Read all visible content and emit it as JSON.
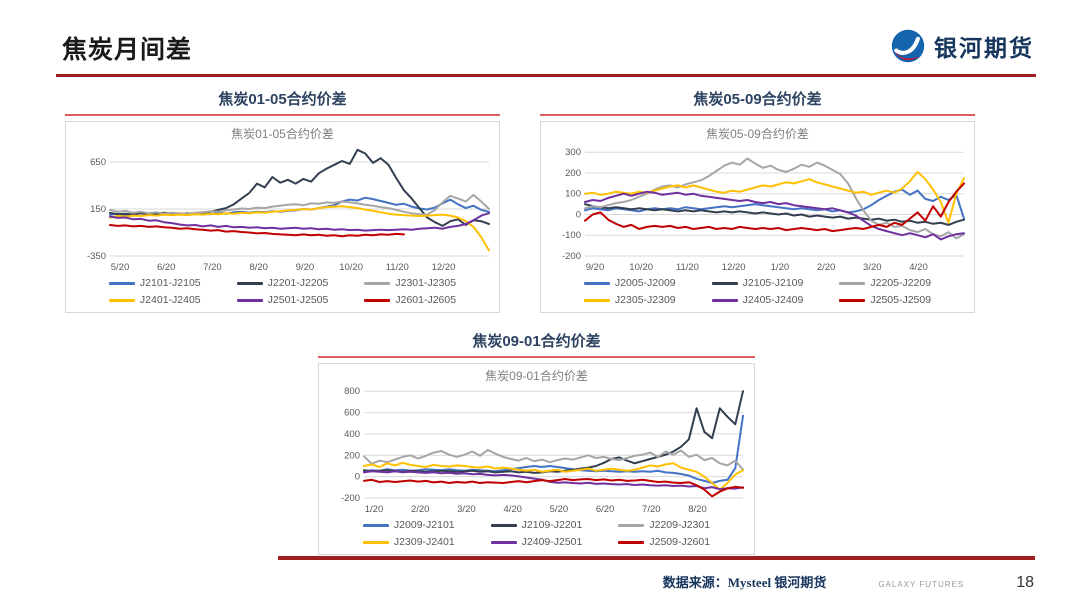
{
  "page": {
    "title": "焦炭月间差",
    "logo_text": "银河期货",
    "footer_source": "数据来源：Mysteel 银河期货",
    "footer_brand": "GALAXY FUTURES",
    "page_number": "18"
  },
  "colors": {
    "accent_dark_red": "#9e1f1f",
    "chart_header_rule": "#dd5c5c",
    "chart_header_text": "#2e4361",
    "brand_blue": "#1465ae",
    "brand_red": "#c8102e",
    "series_blue": "#4472C4",
    "series_navy": "#333F50",
    "series_gray": "#A6A6A6",
    "series_yellow": "#FFC000",
    "series_purple": "#7030A0",
    "series_red": "#C00000"
  },
  "chart_data": [
    {
      "type": "line",
      "header": "焦炭01-05合约价差",
      "title": "焦炭01-05合约价差",
      "x_ticks": [
        "5/20",
        "6/20",
        "7/20",
        "8/20",
        "9/20",
        "10/20",
        "11/20",
        "12/20"
      ],
      "y_ticks": [
        650,
        150,
        -350
      ],
      "ylim": [
        -350,
        820
      ],
      "grid": true,
      "legend_position": "bottom",
      "series": [
        {
          "name": "J2101-J2105",
          "color": "#4472C4",
          "values": [
            90,
            100,
            85,
            95,
            105,
            90,
            100,
            95,
            105,
            100,
            95,
            100,
            105,
            95,
            110,
            100,
            115,
            120,
            110,
            120,
            115,
            125,
            120,
            130,
            135,
            150,
            145,
            160,
            175,
            190,
            230,
            250,
            240,
            270,
            255,
            235,
            215,
            195,
            205,
            175,
            155,
            145,
            165,
            210,
            250,
            200,
            160,
            185,
            140,
            120
          ]
        },
        {
          "name": "J2201-J2205",
          "color": "#333F50",
          "values": [
            110,
            95,
            100,
            90,
            105,
            95,
            100,
            110,
            100,
            95,
            105,
            100,
            110,
            120,
            140,
            160,
            200,
            260,
            320,
            420,
            380,
            490,
            430,
            460,
            420,
            470,
            440,
            530,
            580,
            620,
            660,
            630,
            780,
            740,
            640,
            690,
            620,
            480,
            350,
            260,
            160,
            60,
            10,
            -30,
            20,
            40,
            -20,
            30,
            20,
            -10
          ]
        },
        {
          "name": "J2301-J2305",
          "color": "#A6A6A6",
          "values": [
            140,
            120,
            130,
            110,
            120,
            105,
            115,
            100,
            110,
            105,
            100,
            110,
            115,
            125,
            120,
            135,
            145,
            155,
            150,
            165,
            160,
            175,
            185,
            195,
            200,
            190,
            210,
            205,
            220,
            215,
            230,
            220,
            210,
            195,
            185,
            170,
            160,
            140,
            120,
            105,
            95,
            90,
            140,
            220,
            290,
            260,
            230,
            300,
            230,
            150
          ]
        },
        {
          "name": "J2401-J2405",
          "color": "#FFC000",
          "values": [
            60,
            75,
            70,
            80,
            75,
            85,
            80,
            90,
            85,
            90,
            85,
            95,
            90,
            100,
            95,
            105,
            100,
            110,
            105,
            115,
            110,
            120,
            125,
            135,
            140,
            150,
            145,
            160,
            170,
            175,
            180,
            170,
            160,
            145,
            130,
            115,
            100,
            90,
            85,
            80,
            75,
            80,
            85,
            90,
            80,
            60,
            20,
            -40,
            -150,
            -290
          ]
        },
        {
          "name": "J2501-J2505",
          "color": "#7030A0",
          "values": [
            70,
            55,
            60,
            40,
            45,
            25,
            30,
            10,
            0,
            -15,
            -25,
            -20,
            -35,
            -25,
            -40,
            -30,
            -45,
            -40,
            -50,
            -45,
            -55,
            -50,
            -60,
            -55,
            -50,
            -60,
            -55,
            -65,
            -60,
            -70,
            -65,
            -75,
            -70,
            -80,
            -75,
            -70,
            -75,
            -70,
            -65,
            -70,
            -60,
            -55,
            -50,
            -60,
            -40,
            -30,
            -10,
            30,
            80,
            105
          ]
        },
        {
          "name": "J2601-J2605",
          "color": "#C00000",
          "values": [
            -20,
            -30,
            -25,
            -35,
            -30,
            -40,
            -35,
            -45,
            -50,
            -60,
            -55,
            -65,
            -70,
            -80,
            -75,
            -90,
            -85,
            -95,
            -100,
            -110,
            -105,
            -115,
            -120,
            -125,
            -130,
            -120,
            -130,
            -125,
            -135,
            -130,
            -140,
            -130,
            -135,
            -125,
            -130,
            -120,
            -125,
            -115,
            -120,
            null,
            null,
            null,
            null,
            null,
            null,
            null,
            null,
            null,
            null,
            null
          ]
        }
      ]
    },
    {
      "type": "line",
      "header": "焦炭05-09合约价差",
      "title": "焦炭05-09合约价差",
      "x_ticks": [
        "9/20",
        "10/20",
        "11/20",
        "12/20",
        "1/20",
        "2/20",
        "3/20",
        "4/20"
      ],
      "y_ticks": [
        300,
        200,
        100,
        0,
        -100,
        -200
      ],
      "ylim": [
        -200,
        330
      ],
      "grid": true,
      "legend_position": "bottom",
      "series": [
        {
          "name": "J2005-J2009",
          "color": "#4472C4",
          "values": [
            20,
            30,
            25,
            20,
            30,
            25,
            20,
            15,
            25,
            30,
            25,
            30,
            25,
            35,
            30,
            25,
            30,
            35,
            40,
            35,
            40,
            45,
            50,
            45,
            40,
            35,
            30,
            25,
            30,
            25,
            20,
            25,
            15,
            20,
            10,
            15,
            25,
            45,
            70,
            90,
            110,
            120,
            95,
            115,
            75,
            65,
            85,
            70,
            95,
            -20
          ]
        },
        {
          "name": "J2105-J2109",
          "color": "#333F50",
          "values": [
            50,
            40,
            35,
            30,
            35,
            30,
            25,
            30,
            25,
            20,
            25,
            20,
            15,
            20,
            15,
            20,
            15,
            10,
            15,
            10,
            15,
            10,
            5,
            10,
            5,
            0,
            5,
            -5,
            0,
            -10,
            -5,
            -10,
            -15,
            -10,
            -20,
            -15,
            -20,
            -25,
            -20,
            -30,
            -25,
            -35,
            -30,
            -40,
            -35,
            -45,
            -40,
            -50,
            -35,
            -25
          ]
        },
        {
          "name": "J2205-J2209",
          "color": "#A6A6A6",
          "values": [
            30,
            40,
            35,
            45,
            55,
            60,
            70,
            85,
            100,
            120,
            135,
            140,
            130,
            145,
            155,
            165,
            185,
            210,
            235,
            250,
            240,
            270,
            245,
            225,
            235,
            215,
            205,
            220,
            240,
            230,
            250,
            235,
            215,
            195,
            150,
            80,
            20,
            -30,
            -50,
            -40,
            -60,
            -55,
            -75,
            -85,
            -70,
            -95,
            -105,
            -85,
            -115,
            -95
          ]
        },
        {
          "name": "J2305-J2309",
          "color": "#FFC000",
          "values": [
            100,
            105,
            95,
            100,
            110,
            105,
            100,
            110,
            105,
            115,
            125,
            135,
            140,
            130,
            140,
            130,
            120,
            110,
            105,
            115,
            110,
            120,
            130,
            140,
            135,
            145,
            155,
            150,
            160,
            170,
            155,
            145,
            135,
            125,
            115,
            105,
            110,
            95,
            105,
            115,
            105,
            125,
            160,
            205,
            170,
            120,
            60,
            -40,
            100,
            175
          ]
        },
        {
          "name": "J2405-J2409",
          "color": "#7030A0",
          "values": [
            60,
            70,
            65,
            80,
            90,
            100,
            90,
            100,
            110,
            105,
            95,
            100,
            105,
            95,
            100,
            90,
            85,
            80,
            75,
            70,
            65,
            70,
            60,
            55,
            60,
            50,
            55,
            45,
            40,
            35,
            30,
            25,
            30,
            20,
            10,
            -5,
            -30,
            -55,
            -70,
            -80,
            -90,
            -100,
            -90,
            -100,
            -110,
            -95,
            -120,
            -105,
            -95,
            -90
          ]
        },
        {
          "name": "J2505-J2509",
          "color": "#C00000",
          "values": [
            -30,
            0,
            10,
            -25,
            -45,
            -60,
            -50,
            -70,
            -60,
            -55,
            -60,
            -55,
            -65,
            -60,
            -70,
            -65,
            -60,
            -70,
            -65,
            -70,
            -60,
            -65,
            -70,
            -65,
            -70,
            -65,
            -75,
            -70,
            -65,
            -70,
            -75,
            -70,
            -80,
            -75,
            -70,
            -65,
            -70,
            -60,
            -50,
            -60,
            -40,
            -50,
            -20,
            10,
            -30,
            40,
            -10,
            60,
            110,
            150
          ]
        }
      ]
    },
    {
      "type": "line",
      "header": "焦炭09-01合约价差",
      "title": "焦炭09-01合约价差",
      "x_ticks": [
        "1/20",
        "2/20",
        "3/20",
        "4/20",
        "5/20",
        "6/20",
        "7/20",
        "8/20"
      ],
      "y_ticks": [
        800,
        600,
        400,
        200,
        0,
        -200
      ],
      "ylim": [
        -200,
        830
      ],
      "grid": true,
      "legend_position": "bottom",
      "series": [
        {
          "name": "J2009-J2101",
          "color": "#4472C4",
          "values": [
            50,
            60,
            55,
            70,
            60,
            65,
            55,
            60,
            70,
            65,
            60,
            70,
            60,
            55,
            65,
            60,
            55,
            50,
            60,
            70,
            80,
            90,
            100,
            90,
            100,
            90,
            80,
            70,
            60,
            55,
            50,
            55,
            50,
            45,
            50,
            45,
            50,
            45,
            55,
            40,
            35,
            25,
            10,
            -20,
            -40,
            -60,
            -40,
            -30,
            80,
            570
          ]
        },
        {
          "name": "J2109-J2201",
          "color": "#333F50",
          "values": [
            60,
            50,
            55,
            60,
            50,
            45,
            55,
            50,
            45,
            50,
            55,
            50,
            45,
            50,
            55,
            45,
            50,
            40,
            45,
            50,
            40,
            45,
            35,
            40,
            50,
            45,
            55,
            65,
            75,
            85,
            100,
            130,
            165,
            180,
            150,
            125,
            145,
            165,
            185,
            205,
            235,
            280,
            350,
            640,
            420,
            360,
            640,
            560,
            490,
            800
          ]
        },
        {
          "name": "J2209-J2301",
          "color": "#A6A6A6",
          "values": [
            190,
            120,
            150,
            135,
            160,
            185,
            200,
            170,
            195,
            225,
            240,
            205,
            185,
            205,
            235,
            195,
            250,
            215,
            185,
            165,
            150,
            175,
            145,
            160,
            135,
            155,
            170,
            160,
            180,
            200,
            175,
            185,
            165,
            155,
            175,
            195,
            205,
            225,
            185,
            235,
            205,
            245,
            185,
            205,
            155,
            175,
            125,
            105,
            150,
            65
          ]
        },
        {
          "name": "J2309-J2401",
          "color": "#FFC000",
          "values": [
            100,
            115,
            90,
            125,
            105,
            130,
            110,
            100,
            90,
            110,
            100,
            95,
            105,
            100,
            90,
            85,
            95,
            75,
            85,
            75,
            65,
            55,
            65,
            45,
            55,
            65,
            45,
            55,
            65,
            75,
            55,
            65,
            75,
            65,
            55,
            65,
            85,
            105,
            95,
            115,
            125,
            85,
            65,
            45,
            0,
            -60,
            -120,
            -60,
            20,
            60
          ]
        },
        {
          "name": "J2409-J2501",
          "color": "#7030A0",
          "values": [
            40,
            50,
            45,
            40,
            50,
            42,
            45,
            40,
            35,
            42,
            32,
            36,
            28,
            32,
            22,
            26,
            16,
            12,
            16,
            12,
            2,
            -8,
            -18,
            -28,
            -48,
            -58,
            -54,
            -60,
            -64,
            -58,
            -68,
            -64,
            -70,
            -74,
            -70,
            -78,
            -74,
            -80,
            -84,
            -80,
            -88,
            -84,
            -92,
            -88,
            -108,
            -98,
            -118,
            -108,
            -112,
            -100
          ]
        },
        {
          "name": "J2509-J2601",
          "color": "#C00000",
          "values": [
            -40,
            -30,
            -50,
            -42,
            -50,
            -44,
            -36,
            -46,
            -40,
            -54,
            -46,
            -60,
            -50,
            -56,
            -46,
            -60,
            -52,
            -56,
            -60,
            -50,
            -42,
            -52,
            -42,
            -32,
            -42,
            -32,
            -22,
            -32,
            -26,
            -22,
            -32,
            -26,
            -36,
            -30,
            -40,
            -36,
            -30,
            -40,
            -50,
            -46,
            -56,
            -60,
            -52,
            -80,
            -120,
            -185,
            -140,
            -110,
            -95,
            -105
          ]
        }
      ]
    }
  ]
}
